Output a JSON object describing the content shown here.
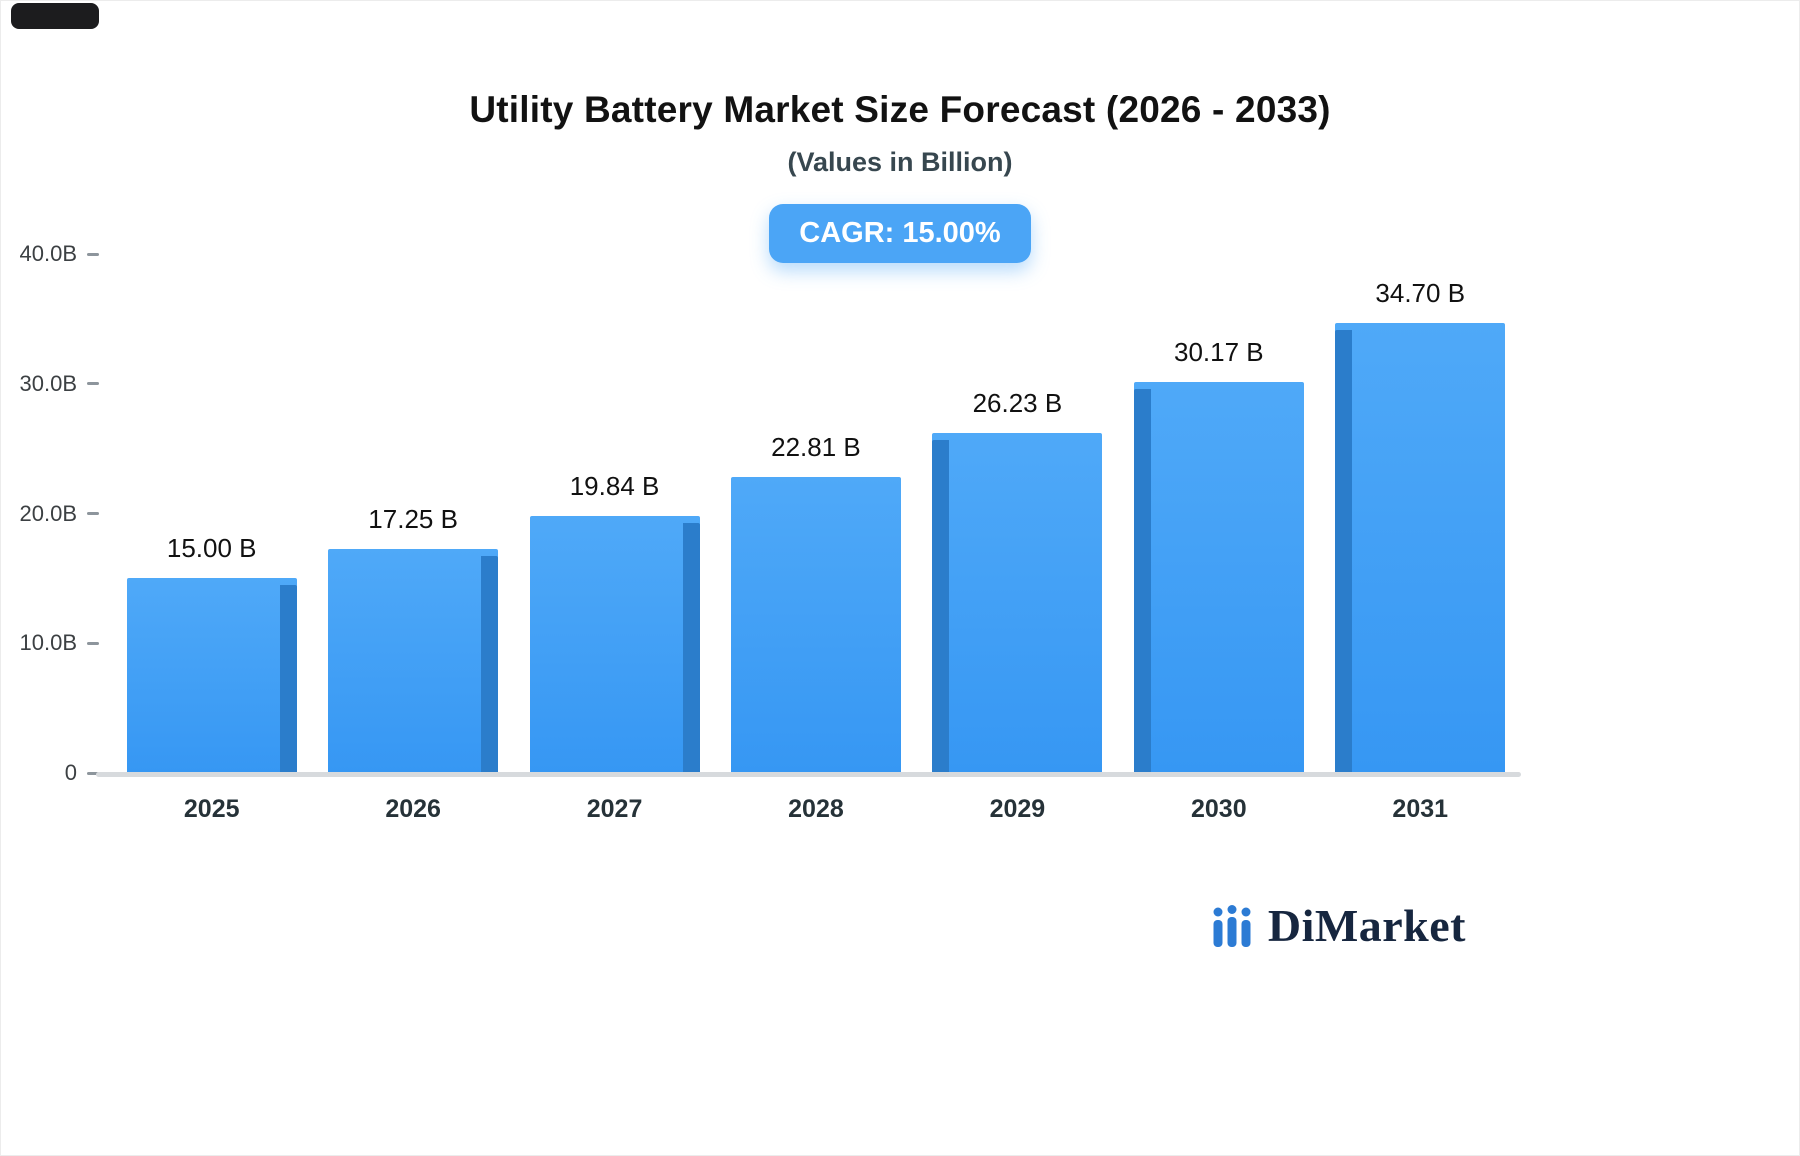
{
  "chart_data": {
    "type": "bar",
    "title": "Utility Battery Market Size Forecast (2026 - 2033)",
    "subtitle": "(Values in Billion)",
    "badge": "CAGR: 15.00%",
    "categories": [
      "2025",
      "2026",
      "2027",
      "2028",
      "2029",
      "2030",
      "2031"
    ],
    "values": [
      15.0,
      17.25,
      19.84,
      22.81,
      26.23,
      30.17,
      34.7
    ],
    "value_labels": [
      "15.00 B",
      "17.25 B",
      "19.84 B",
      "22.81 B",
      "26.23 B",
      "30.17 B",
      "34.70 B"
    ],
    "xlabel": "",
    "ylabel": "",
    "ylim": [
      0,
      40
    ],
    "yticks": [
      {
        "label": "40.0B",
        "v": 40
      },
      {
        "label": "30.0B",
        "v": 30
      },
      {
        "label": "20.0B",
        "v": 20
      },
      {
        "label": "10.0B",
        "v": 10
      },
      {
        "label": "0",
        "v": 0
      }
    ],
    "grid": "off",
    "legend": "none",
    "bar_color": "#3FA2F7",
    "bar_side_color": "#2B7DCB",
    "badge_color": "#4BA5F6"
  },
  "logo": {
    "text": "DiMarket",
    "icon": "dimarket-bars-icon",
    "icon_color": "#2C7BD4"
  }
}
